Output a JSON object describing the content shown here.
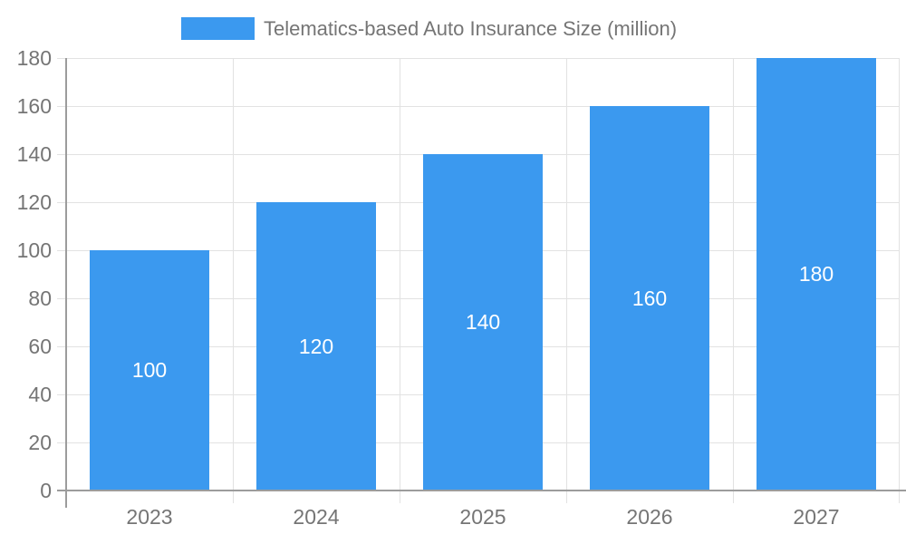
{
  "legend": {
    "label": "Telematics-based Auto Insurance Size (million)"
  },
  "chart_data": {
    "type": "bar",
    "title": "Telematics-based Auto Insurance Size (million)",
    "categories": [
      "2023",
      "2024",
      "2025",
      "2026",
      "2027"
    ],
    "values": [
      100,
      120,
      140,
      160,
      180
    ],
    "series": [
      {
        "name": "Telematics-based Auto Insurance Size (million)",
        "values": [
          100,
          120,
          140,
          160,
          180
        ]
      }
    ],
    "xlabel": "",
    "ylabel": "",
    "ylim": [
      0,
      180
    ],
    "yticks": [
      0,
      20,
      40,
      60,
      80,
      100,
      120,
      140,
      160,
      180
    ],
    "grid": true,
    "legend_position": "top-center",
    "data_labels": [
      "100",
      "120",
      "140",
      "160",
      "180"
    ],
    "data_labels_inside": true
  },
  "colors": {
    "bar": "#3B99EF",
    "data_label": "#FFFFFF",
    "axis_text": "#757575",
    "gridline": "#E2E2E2",
    "axis_line": "#9C9C9C",
    "background": "#FFFFFF"
  }
}
